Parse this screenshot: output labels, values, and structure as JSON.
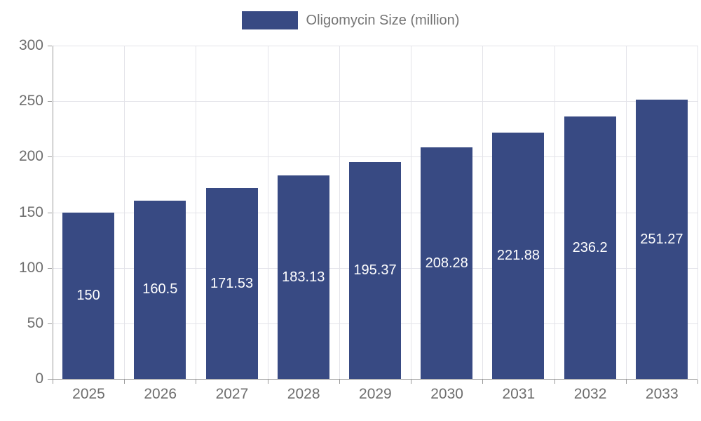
{
  "chart_data": {
    "type": "bar",
    "legend_label": "Oligomycin Size (million)",
    "legend_position": "top",
    "categories": [
      "2025",
      "2026",
      "2027",
      "2028",
      "2029",
      "2030",
      "2031",
      "2032",
      "2033"
    ],
    "series": [
      {
        "name": "Oligomycin Size (million)",
        "values": [
          150,
          160.5,
          171.53,
          183.13,
          195.37,
          208.28,
          221.88,
          236.2,
          251.27
        ]
      }
    ],
    "data_labels": [
      "150",
      "160.5",
      "171.53",
      "183.13",
      "195.37",
      "208.28",
      "221.88",
      "236.2",
      "251.27"
    ],
    "ylim": [
      0,
      300
    ],
    "yticks": [
      0,
      50,
      100,
      150,
      200,
      250,
      300
    ],
    "grid": true,
    "colors": {
      "bar": "#384a83",
      "bar_label": "#ffffff",
      "gridline": "#e3e3e9",
      "axis": "#9a9a9a",
      "tick_text": "#6e6e6e",
      "legend_text": "#757575",
      "background": "#ffffff"
    }
  }
}
